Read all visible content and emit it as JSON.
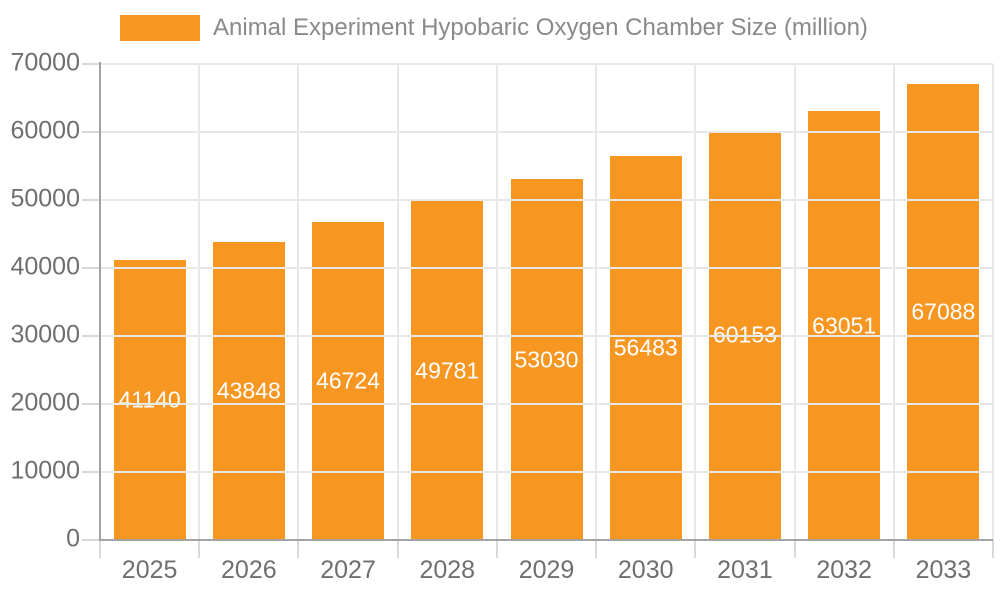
{
  "legend": {
    "label": "Animal Experiment Hypobaric Oxygen Chamber Size (million)"
  },
  "chart_data": {
    "type": "bar",
    "title": "Animal Experiment Hypobaric Oxygen Chamber Size (million)",
    "categories": [
      "2025",
      "2026",
      "2027",
      "2028",
      "2029",
      "2030",
      "2031",
      "2032",
      "2033"
    ],
    "values": [
      41140,
      43848,
      46724,
      49781,
      53030,
      56483,
      60153,
      63051,
      67088
    ],
    "series": [
      {
        "name": "Animal Experiment Hypobaric Oxygen Chamber Size (million)",
        "values": [
          41140,
          43848,
          46724,
          49781,
          53030,
          56483,
          60153,
          63051,
          67088
        ]
      }
    ],
    "xlabel": "",
    "ylabel": "",
    "ylim": [
      0,
      70000
    ],
    "y_ticks": [
      0,
      10000,
      20000,
      30000,
      40000,
      50000,
      60000,
      70000
    ],
    "grid": true,
    "legend_position": "top-left",
    "bar_label_position": "inside-center"
  },
  "colors": {
    "bar": "#F89622",
    "bar_label": "#FFFFFF",
    "axis_line": "#A3A3A3",
    "gridline": "#E8E8E8",
    "tick": "#D9D9D9",
    "axis_text": "#6F6F6F",
    "legend_text": "#8A8A8A",
    "background": "#FFFFFF"
  }
}
